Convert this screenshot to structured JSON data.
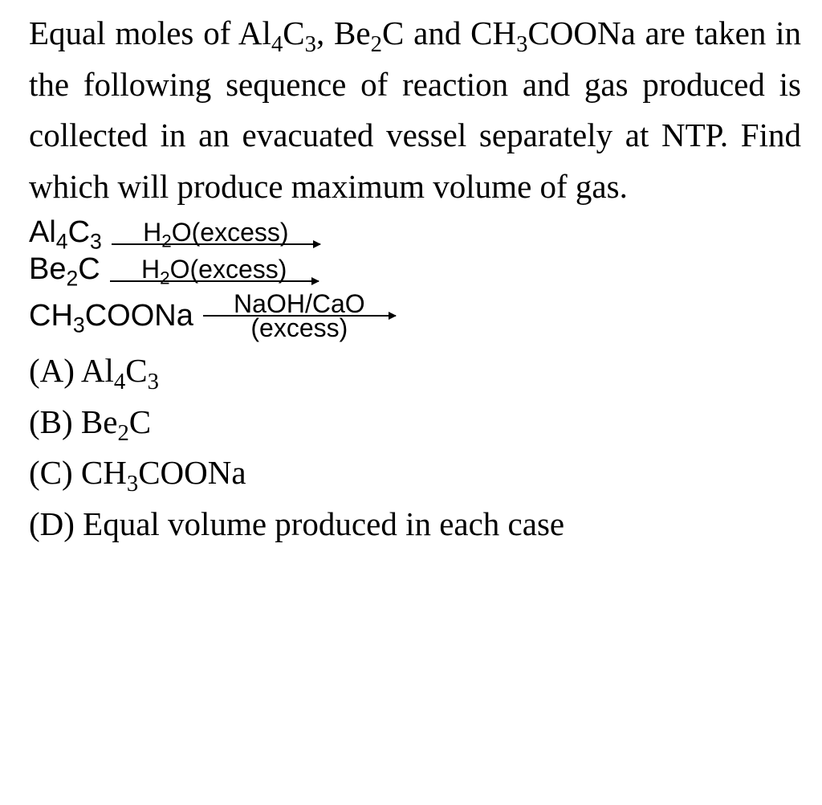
{
  "colors": {
    "text": "#000000",
    "background": "#ffffff"
  },
  "typography": {
    "serif_family": "Times New Roman",
    "sans_family": "Arial",
    "body_size_pt": 31,
    "reaction_size_pt": 29,
    "arrow_label_size_pt": 24
  },
  "question": {
    "l1a": "Equal moles of Al",
    "l1b": "C",
    "l1c": ", Be",
    "l1d": "C and CH",
    "l1e": "COONa",
    "l2": "are taken in the following sequence of reaction",
    "l3": "and gas produced is collected in an evacuated",
    "l4": "vessel separately at NTP. Find which will",
    "l5": "produce maximum volume of gas.",
    "sub4": "4",
    "sub3": "3",
    "sub2": "2"
  },
  "reactions": [
    {
      "reactant_a": "Al",
      "sub_a": "4",
      "reactant_b": "C",
      "sub_b": "3",
      "top_a": "H",
      "top_sub": "2",
      "top_b": "O(excess)",
      "bottom": "",
      "arrow_width": 260
    },
    {
      "reactant_a": "Be",
      "sub_a": "2",
      "reactant_b": "C",
      "sub_b": "",
      "top_a": "H",
      "top_sub": "2",
      "top_b": "O(excess)",
      "bottom": "",
      "arrow_width": 260
    },
    {
      "reactant_a": "CH",
      "sub_a": "3",
      "reactant_b": "COONa",
      "sub_b": "",
      "top_a": "NaOH/CaO",
      "top_sub": "",
      "top_b": "",
      "bottom": "(excess)",
      "arrow_width": 240
    }
  ],
  "options": {
    "a_pre": "(A) Al",
    "a_sub1": "4",
    "a_mid": "C",
    "a_sub2": "3",
    "b_pre": "(B) Be",
    "b_sub1": "2",
    "b_mid": "C",
    "c_pre": "(C) CH",
    "c_sub1": "3",
    "c_mid": "COONa",
    "d": "(D) Equal volume produced in each case"
  }
}
